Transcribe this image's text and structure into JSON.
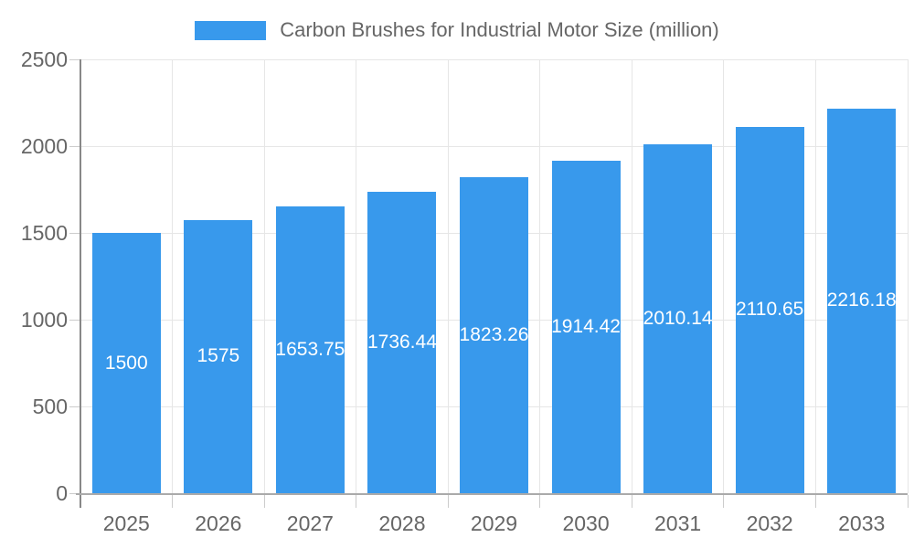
{
  "legend": {
    "label": "Carbon Brushes for Industrial Motor Size (million)"
  },
  "chart_data": {
    "type": "bar",
    "title": "Carbon Brushes for Industrial Motor Size (million)",
    "categories": [
      "2025",
      "2026",
      "2027",
      "2028",
      "2029",
      "2030",
      "2031",
      "2032",
      "2033"
    ],
    "values": [
      1500,
      1575,
      1653.75,
      1736.44,
      1823.26,
      1914.42,
      2010.14,
      2110.65,
      2216.18
    ],
    "bar_labels": [
      "1500",
      "1575",
      "1653.75",
      "1736.44",
      "1823.26",
      "1914.42",
      "2010.14",
      "2110.65",
      "2216.18"
    ],
    "xlabel": "",
    "ylabel": "",
    "ylim": [
      0,
      2500
    ],
    "y_ticks": [
      0,
      500,
      1000,
      1500,
      2000,
      2500
    ],
    "grid": true,
    "legend_position": "top",
    "colors": {
      "bar": "#3899EC",
      "grid": "#e6e6e6",
      "y_axis_line": "#888888",
      "baseline": "#aaaaaa",
      "tick": "#cccccc",
      "axis_text": "#666666",
      "bar_label_text": "#ffffff",
      "background": "#ffffff"
    }
  }
}
